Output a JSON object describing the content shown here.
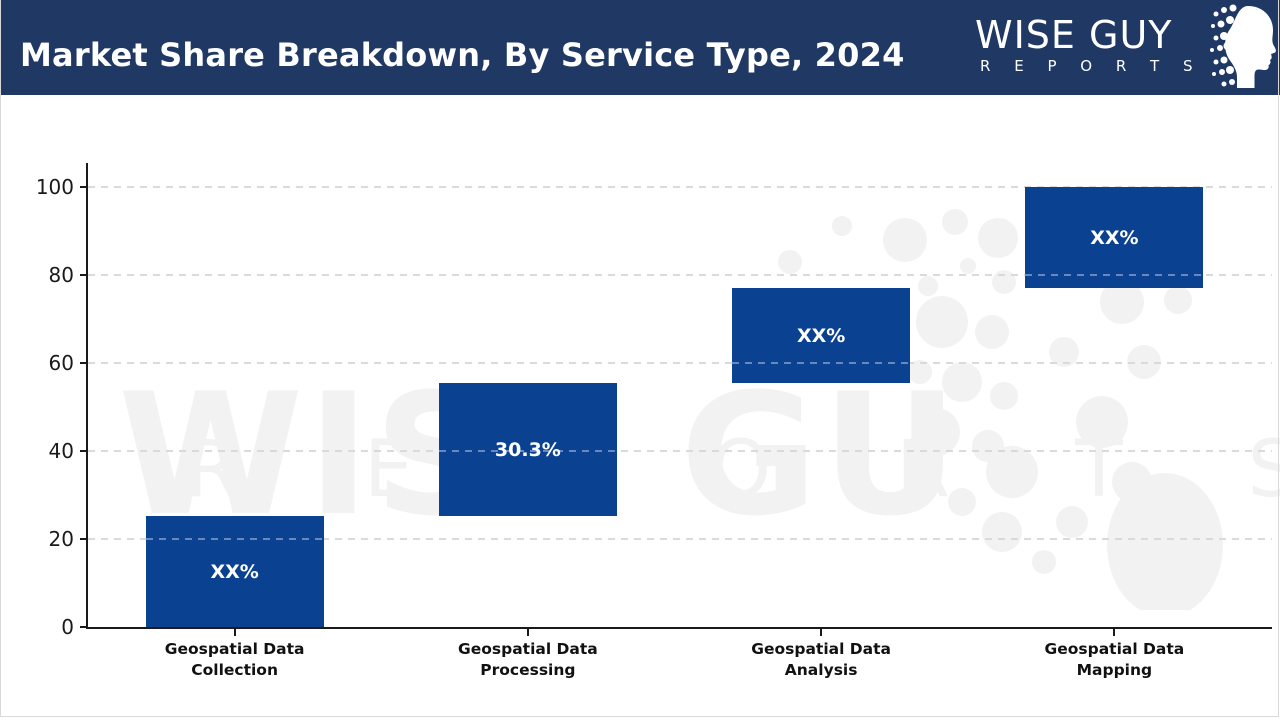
{
  "header": {
    "title": "Market Share Breakdown, By Service Type, 2024",
    "background_color": "#1F3864",
    "logo": {
      "wordmark": "WISE GUY",
      "subtitle": "R E P O R T S"
    }
  },
  "watermark": {
    "text": "WISE GU",
    "subtitle": "R E P O R T S"
  },
  "chart_data": {
    "type": "bar",
    "variant": "floating-waterfall",
    "title": "Market Share Breakdown, By Service Type, 2024",
    "xlabel": "",
    "ylabel": "",
    "ylim": [
      0,
      105.5
    ],
    "yticks": [
      0,
      20,
      40,
      60,
      80,
      100
    ],
    "grid": "dashed-horizontal",
    "legend": "none",
    "categories": [
      [
        "Geospatial Data",
        "Collection"
      ],
      [
        "Geospatial Data",
        "Processing"
      ],
      [
        "Geospatial Data",
        "Analysis"
      ],
      [
        "Geospatial Data",
        "Mapping"
      ]
    ],
    "bars": [
      {
        "start": 0,
        "end": 25.2,
        "height": 25.2,
        "label": "XX%"
      },
      {
        "start": 25.2,
        "end": 55.5,
        "height": 30.3,
        "label": "30.3%"
      },
      {
        "start": 55.5,
        "end": 77.0,
        "height": 21.5,
        "label": "XX%"
      },
      {
        "start": 77.0,
        "end": 100.0,
        "height": 23.0,
        "label": "XX%"
      }
    ],
    "bar_color": "#0A4191",
    "bar_label_color": "#FFFFFF",
    "axis_color": "#1A1A1A",
    "grid_color": "#DADADA"
  }
}
